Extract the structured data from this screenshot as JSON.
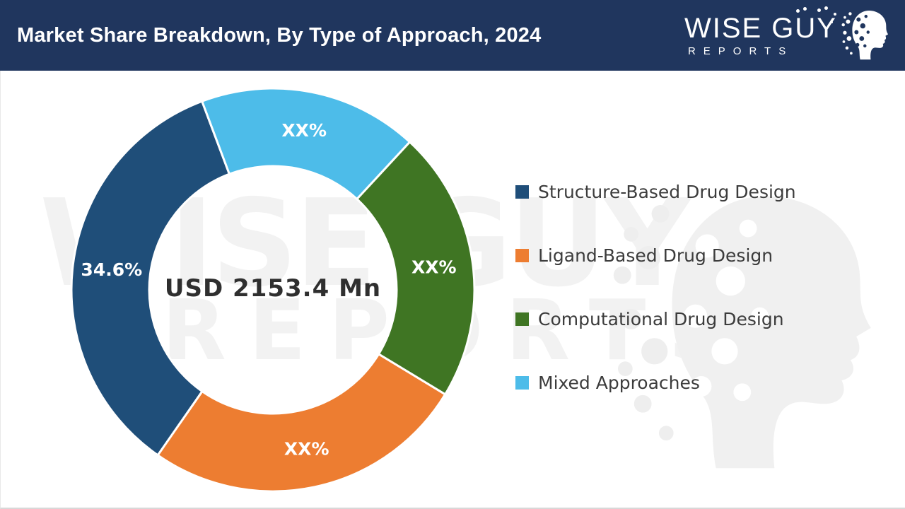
{
  "header": {
    "title": "Market Share Breakdown, By Type of Approach, 2024",
    "logo": {
      "line1": "WISE GUY",
      "line2": "REPORTS"
    }
  },
  "watermark": {
    "line1": "WISE GUY",
    "line2": "REPORTS"
  },
  "chart_data": {
    "type": "pie",
    "subtype": "donut",
    "title": "Market Share Breakdown, By Type of Approach, 2024",
    "center_label": "USD 2153.4 Mn",
    "start_angle_deg": 339.4,
    "direction": "counterclockwise",
    "inner_radius_ratio": 0.61,
    "legend_position": "right",
    "segments": [
      {
        "name": "Structure-Based Drug Design",
        "value": 34.6,
        "label": "34.6%",
        "color": "#1F4E79",
        "label_color": "#ffffff"
      },
      {
        "name": "Ligand-Based Drug Design",
        "value": 26.0,
        "label": "XX%",
        "color": "#ED7D31",
        "label_color": "#ffffff"
      },
      {
        "name": "Computational Drug Design",
        "value": 21.8,
        "label": "XX%",
        "color": "#3F7523",
        "label_color": "#ffffff"
      },
      {
        "name": "Mixed Approaches",
        "value": 17.6,
        "label": "XX%",
        "color": "#4DBCE9",
        "label_color": "#ffffff"
      }
    ]
  },
  "colors": {
    "header_bg": "#20365E",
    "watermark": "#f2f2f2",
    "center_text": "#2f2f2f",
    "legend_text": "#3c3c3c",
    "separator": "#ffffff"
  }
}
